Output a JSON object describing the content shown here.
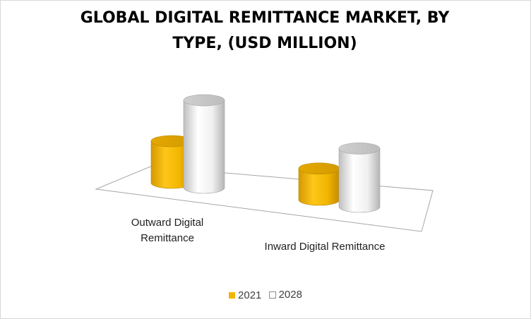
{
  "chart_data": {
    "type": "bar",
    "title_lines": [
      "GLOBAL DIGITAL REMITTANCE MARKET, BY",
      "TYPE, (USD MILLION)"
    ],
    "categories": [
      [
        "Outward Digital",
        "Remittance"
      ],
      [
        "Inward Digital Remittance"
      ]
    ],
    "series": [
      {
        "name": "2021",
        "color": "#f2b600",
        "values": [
          20,
          15
        ]
      },
      {
        "name": "2028",
        "color": "#f2f2f2",
        "values": [
          42,
          28
        ]
      }
    ],
    "legend_position": "bottom",
    "grid": false,
    "bar_shape": "3d-cylinder"
  }
}
